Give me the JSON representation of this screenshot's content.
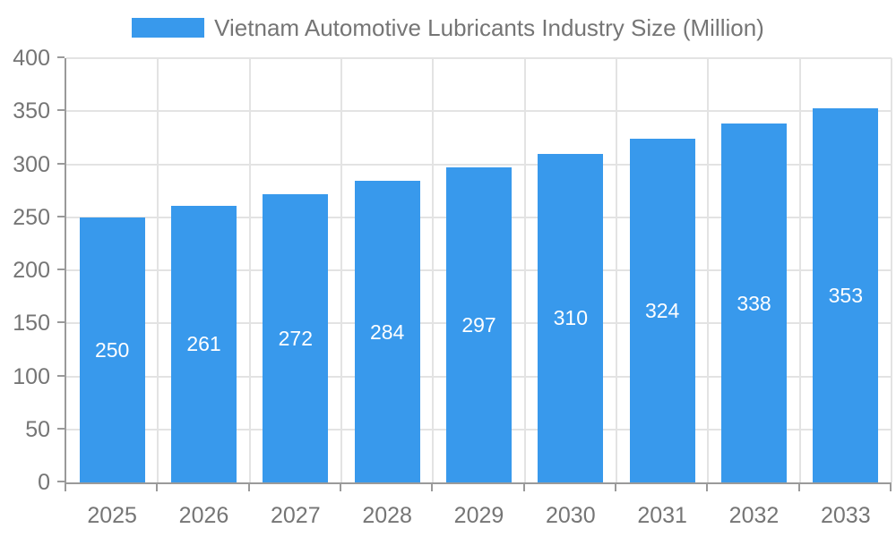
{
  "chart_data": {
    "type": "bar",
    "title": "Vietnam Automotive Lubricants Industry Size (Million)",
    "categories": [
      "2025",
      "2026",
      "2027",
      "2028",
      "2029",
      "2030",
      "2031",
      "2032",
      "2033"
    ],
    "values": [
      250,
      261,
      272,
      284,
      297,
      310,
      324,
      338,
      353
    ],
    "bar_labels": [
      "250",
      "261",
      "272",
      "284",
      "297",
      "310",
      "324",
      "338",
      "353"
    ],
    "xlabel": "",
    "ylabel": "",
    "ylim": [
      0,
      400
    ],
    "yticks": [
      0,
      50,
      100,
      150,
      200,
      250,
      300,
      350,
      400
    ],
    "grid": "on",
    "legend_position": "top-center",
    "legend_entries": [
      "Vietnam Automotive Lubricants Industry Size (Million)"
    ],
    "colors": {
      "bar": "#3899EC",
      "gridline": "#E3E3E3",
      "axis_line": "#9A9A9A",
      "tick_text": "#757575",
      "bar_label_text": "#FFFFFF",
      "background": "#FFFFFF"
    }
  }
}
